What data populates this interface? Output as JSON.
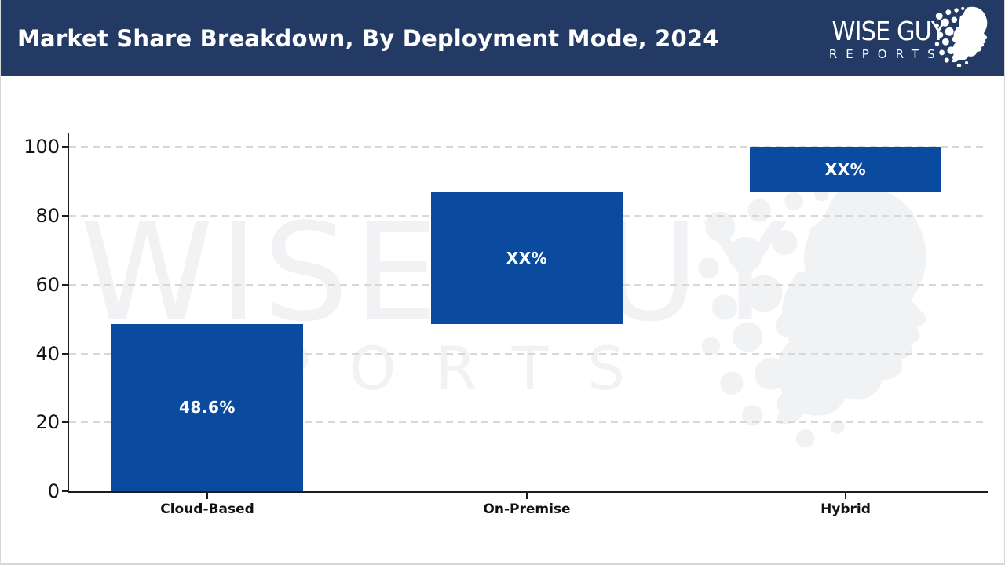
{
  "header": {
    "title": "Market Share Breakdown, By Deployment Mode, 2024"
  },
  "brand": {
    "line1": "WISE GUY",
    "line2": "REPORTS"
  },
  "watermark": {
    "line1": "WISE GUY",
    "line2": "REPORTS"
  },
  "chart_data": {
    "type": "bar",
    "subtype": "waterfall",
    "title": "Market Share Breakdown, By Deployment Mode, 2024",
    "categories": [
      "Cloud-Based",
      "On-Premise",
      "Hybrid"
    ],
    "segments": [
      {
        "category": "Cloud-Based",
        "from": 0,
        "to": 48.6,
        "label": "48.6%"
      },
      {
        "category": "On-Premise",
        "from": 48.6,
        "to": 86.8,
        "label": "XX%"
      },
      {
        "category": "Hybrid",
        "from": 86.8,
        "to": 100,
        "label": "XX%"
      }
    ],
    "y_ticks": [
      0,
      20,
      40,
      60,
      80,
      100
    ],
    "ylim": [
      0,
      100
    ],
    "xlabel": "",
    "ylabel": "",
    "legend": "none",
    "grid": "horizontal-dashed",
    "colors": {
      "bar": "#0b4b9f",
      "bar_label": "#ffffff",
      "grid": "#d8d8d8",
      "axis": "#1c1c1c",
      "header_bg": "#223a64",
      "watermark": "#f2f2f4"
    }
  }
}
